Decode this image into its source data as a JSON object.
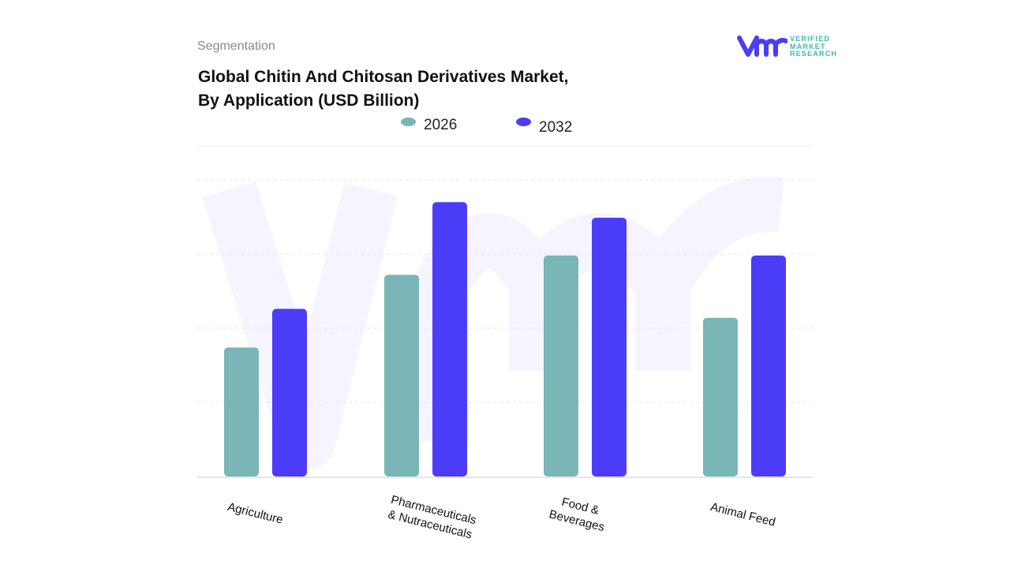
{
  "header": {
    "segment_label": "Segmentation",
    "title_line1": "Global Chitin And Chitosan Derivatives Market,",
    "title_line2": "By Application (USD Billion)"
  },
  "logo": {
    "text_line1": "VERIFIED",
    "text_line2": "MARKET",
    "text_line3": "RESEARCH",
    "brand_color": "#4b3cf7",
    "text_color": "#3fb8b0"
  },
  "chart_data": {
    "type": "bar",
    "title": "Global Chitin And Chitosan Derivatives Market, By Application (USD Billion)",
    "categories": [
      "Agriculture",
      "Pharmaceuticals & Nutraceuticals",
      "Food & Beverages",
      "Animal Feed"
    ],
    "category_lines": [
      [
        "Agriculture"
      ],
      [
        "Pharmaceuticals",
        "& Nutraceuticals"
      ],
      [
        "Food &",
        "Beverages"
      ],
      [
        "Animal Feed"
      ]
    ],
    "series": [
      {
        "name": "2026",
        "color": "#7ab5b8",
        "values": [
          1.74,
          2.72,
          2.98,
          2.14
        ]
      },
      {
        "name": "2032",
        "color": "#4b3cf7",
        "values": [
          2.26,
          3.7,
          3.49,
          2.98
        ]
      }
    ],
    "ylim": [
      0,
      4
    ],
    "y_ticks_labeled": false,
    "grid": true,
    "legend_position": "top-center",
    "xlabel": "",
    "ylabel": ""
  }
}
